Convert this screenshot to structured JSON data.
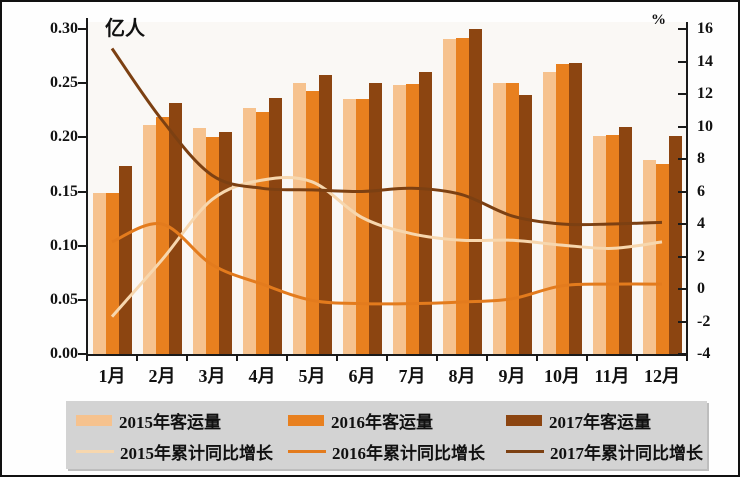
{
  "chart_data": {
    "type": "bar+line combo",
    "title": "",
    "categories": [
      "1月",
      "2月",
      "3月",
      "4月",
      "5月",
      "6月",
      "7月",
      "8月",
      "9月",
      "10月",
      "11月",
      "12月"
    ],
    "left_axis": {
      "label": "亿人",
      "min": 0.0,
      "max": 0.3,
      "step": 0.05,
      "ticks": [
        "0.00",
        "0.05",
        "0.10",
        "0.15",
        "0.20",
        "0.25",
        "0.30"
      ]
    },
    "right_axis": {
      "label": "%",
      "min": -4,
      "max": 16,
      "step": 2,
      "ticks": [
        "-4",
        "-2",
        "0",
        "2",
        "4",
        "6",
        "8",
        "10",
        "12",
        "14",
        "16"
      ]
    },
    "grid": "off",
    "legend_position": "bottom",
    "bar_series": [
      {
        "name": "2015年客运量",
        "color": "#f6c28e",
        "values": [
          0.149,
          0.211,
          0.209,
          0.227,
          0.25,
          0.235,
          0.248,
          0.291,
          0.25,
          0.26,
          0.201,
          0.179
        ]
      },
      {
        "name": "2016年客运量",
        "color": "#e8801f",
        "values": [
          0.149,
          0.219,
          0.2,
          0.223,
          0.243,
          0.235,
          0.249,
          0.292,
          0.25,
          0.268,
          0.202,
          0.175
        ]
      },
      {
        "name": "2017年客运量",
        "color": "#8c4511",
        "values": [
          0.174,
          0.232,
          0.205,
          0.236,
          0.258,
          0.25,
          0.26,
          0.3,
          0.239,
          0.269,
          0.21,
          0.201
        ]
      }
    ],
    "line_series": [
      {
        "name": "2015年累计同比增长",
        "color": "#f7d7ae",
        "values": [
          -1.7,
          1.8,
          5.5,
          6.7,
          6.6,
          4.4,
          3.4,
          3.0,
          3.0,
          2.7,
          2.5,
          2.9
        ]
      },
      {
        "name": "2016年累计同比增长",
        "color": "#e37b1d",
        "values": [
          2.9,
          4.0,
          1.5,
          0.3,
          -0.7,
          -0.9,
          -0.9,
          -0.8,
          -0.6,
          0.2,
          0.3,
          0.3
        ]
      },
      {
        "name": "2017年累计同比增长",
        "color": "#7c4012",
        "values": [
          14.8,
          10.4,
          7.0,
          6.2,
          6.1,
          6.0,
          6.2,
          5.8,
          4.5,
          4.0,
          4.0,
          4.1
        ]
      }
    ]
  }
}
